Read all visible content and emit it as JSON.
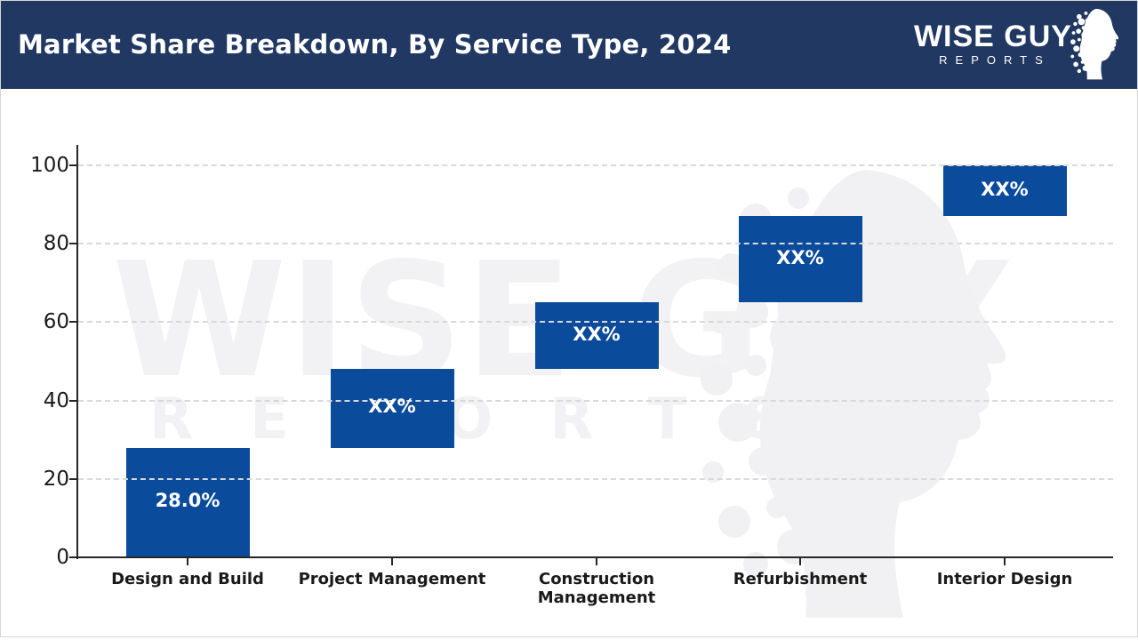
{
  "header": {
    "title": "Market Share Breakdown, By Service Type, 2024",
    "bg_color": "#213863",
    "logo": {
      "line1": "WISE GUY",
      "line2": "REPORTS"
    }
  },
  "watermark": {
    "line1": "WISE GUY",
    "line2": "REPORTS"
  },
  "chart_data": {
    "type": "bar",
    "subtype": "waterfall-stacked-percentage",
    "title": "Market Share Breakdown, By Service Type, 2024",
    "xlabel": "",
    "ylabel": "",
    "ylim": [
      0,
      100
    ],
    "yticks": [
      0,
      20,
      40,
      60,
      80,
      100
    ],
    "grid": true,
    "grid_style": "dashed",
    "legend": false,
    "bar_color": "#0b4b9c",
    "label_color": "#ffffff",
    "categories": [
      "Design and Build",
      "Project Management",
      "Construction Management",
      "Refurbishment",
      "Interior Design"
    ],
    "segments": [
      {
        "category": "Design and Build",
        "start": 0,
        "end": 28,
        "value": 28,
        "label": "28.0%"
      },
      {
        "category": "Project Management",
        "start": 28,
        "end": 48,
        "value": 20,
        "label": "XX%"
      },
      {
        "category": "Construction Management",
        "start": 48,
        "end": 65,
        "value": 17,
        "label": "XX%"
      },
      {
        "category": "Refurbishment",
        "start": 65,
        "end": 87,
        "value": 22,
        "label": "XX%"
      },
      {
        "category": "Interior Design",
        "start": 87,
        "end": 100,
        "value": 13,
        "label": "XX%"
      }
    ]
  }
}
